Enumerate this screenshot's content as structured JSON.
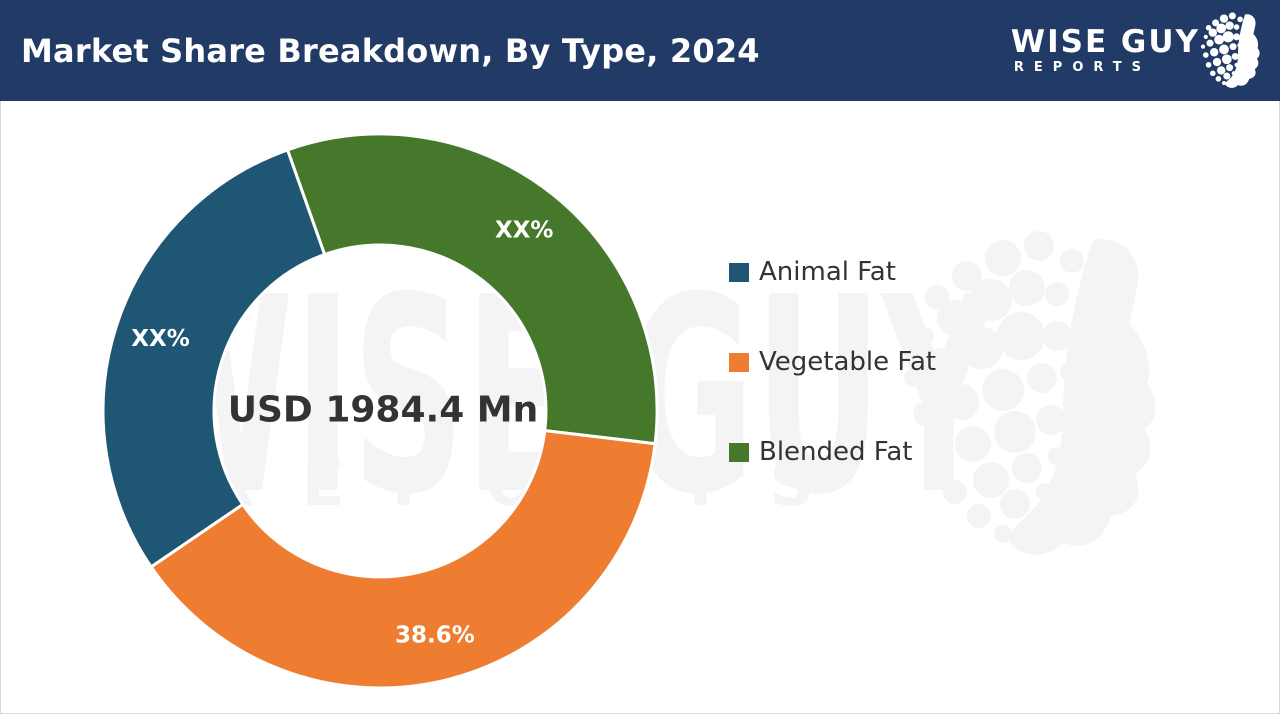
{
  "header": {
    "title": "Market Share Breakdown, By Type, 2024",
    "background_color": "#213a66",
    "logo": {
      "line1": "WISE GUY",
      "line2": "REPORTS"
    }
  },
  "watermark": {
    "line1": "WISE GUY",
    "line2": "REPORTS"
  },
  "chart_data": {
    "type": "pie",
    "subtype": "donut",
    "title": "Market Share Breakdown, By Type, 2024",
    "center_label": "USD 1984.4 Mn",
    "legend_position": "right",
    "start_angle_deg_clockwise_from_north": -19.5,
    "slice_label_color": "#ffffff",
    "separator_color": "#ffffff",
    "series": [
      {
        "name": "Animal Fat",
        "value_pct": 29.1,
        "slice_label": "XX%",
        "color": "#1f5673"
      },
      {
        "name": "Vegetable Fat",
        "value_pct": 38.6,
        "slice_label": "38.6%",
        "color": "#ee7d31"
      },
      {
        "name": "Blended Fat",
        "value_pct": 32.3,
        "slice_label": "XX%",
        "color": "#46782b"
      }
    ]
  }
}
